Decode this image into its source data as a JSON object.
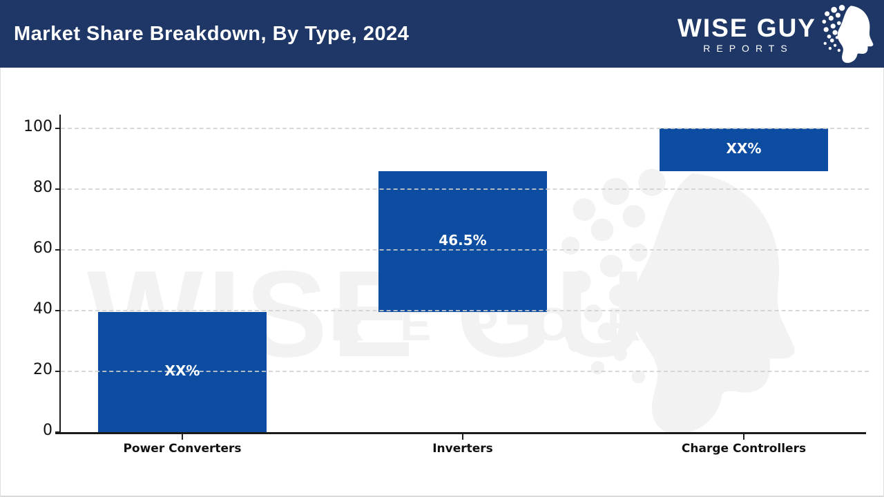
{
  "header": {
    "title": "Market Share Breakdown, By Type, 2024",
    "logo": {
      "line1": "WISE GUY",
      "line2": "REPORTS"
    }
  },
  "watermark": {
    "line1": "WISE GUY",
    "line2": "REPORTS"
  },
  "chart_data": {
    "type": "bar",
    "subtype": "waterfall",
    "title": "Market Share Breakdown, By Type, 2024",
    "xlabel": "",
    "ylabel": "",
    "categories": [
      "Power Converters",
      "Inverters",
      "Charge Controllers"
    ],
    "segments": [
      {
        "category": "Power Converters",
        "start": 0,
        "end": 39.5,
        "label": "XX%"
      },
      {
        "category": "Inverters",
        "start": 39.5,
        "end": 86,
        "label": "46.5%"
      },
      {
        "category": "Charge Controllers",
        "start": 86,
        "end": 100,
        "label": "XX%"
      }
    ],
    "yticks": [
      0,
      20,
      40,
      60,
      80,
      100
    ],
    "ylim": [
      0,
      105
    ],
    "grid": "horizontal-dashed",
    "legend": "none",
    "bar_color": "#0c4da2",
    "value_label_color": "#ffffff"
  }
}
